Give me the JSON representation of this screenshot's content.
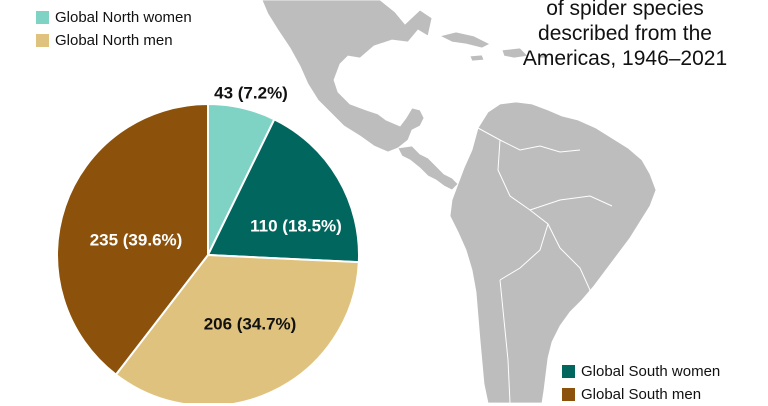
{
  "title_lines": [
    "of spider species",
    "described from the",
    "Americas, 1946–2021"
  ],
  "legend_top": [
    {
      "label": "Global North women",
      "color": "#7fd3c4"
    },
    {
      "label": "Global North men",
      "color": "#dfc27d"
    }
  ],
  "legend_bottom": [
    {
      "label": "Global South women",
      "color": "#01665e"
    },
    {
      "label": "Global South men",
      "color": "#8c510a"
    }
  ],
  "chart_data": {
    "type": "pie",
    "title": "of spider species described from the Americas, 1946–2021",
    "start_angle_deg": 0,
    "direction": "clockwise",
    "slices": [
      {
        "name": "Global North women",
        "value": 43,
        "percent": 7.2,
        "label": "43 (7.2%)",
        "color": "#7fd3c4",
        "label_color": "#111111",
        "label_position": "outside"
      },
      {
        "name": "Global South women",
        "value": 110,
        "percent": 18.5,
        "label": "110 (18.5%)",
        "color": "#01665e",
        "label_color": "#ffffff",
        "label_position": "inside"
      },
      {
        "name": "Global North men",
        "value": 206,
        "percent": 34.7,
        "label": "206 (34.7%)",
        "color": "#dfc27d",
        "label_color": "#111111",
        "label_position": "inside"
      },
      {
        "name": "Global South men",
        "value": 235,
        "percent": 39.6,
        "label": "235 (39.6%)",
        "color": "#8c510a",
        "label_color": "#ffffff",
        "label_position": "inside"
      }
    ],
    "background_map": "Map of the Americas (Central and South America)",
    "map_color": "#bdbdbd"
  }
}
